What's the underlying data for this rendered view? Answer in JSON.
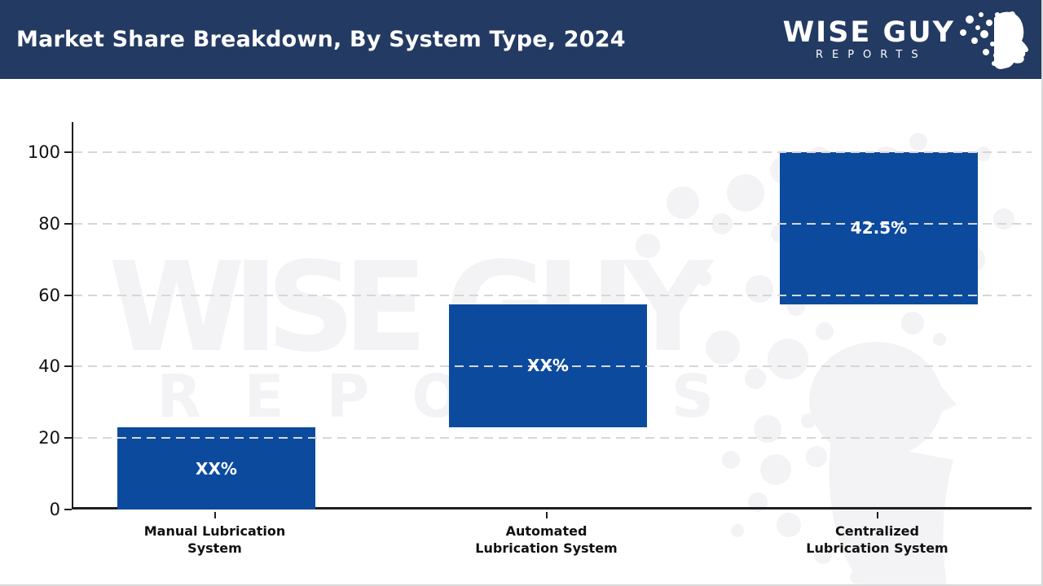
{
  "header": {
    "title": "Market Share Breakdown, By System Type, 2024",
    "logo": {
      "line1": "WISE GUY",
      "line2": "REPORTS"
    },
    "bg_color": "#233a63"
  },
  "watermark": {
    "line1": "WISE GUY",
    "line2": "REPORTS"
  },
  "chart_data": {
    "type": "bar",
    "subtype": "waterfall-floating-bars",
    "title": "Market Share Breakdown, By System Type, 2024",
    "categories": [
      {
        "line1": "Manual Lubrication",
        "line2": "System"
      },
      {
        "line1": "Automated",
        "line2": "Lubrication System"
      },
      {
        "line1": "Centralized",
        "line2": "Lubrication System"
      }
    ],
    "bars": [
      {
        "name": "Manual Lubrication System",
        "start": 0,
        "end": 23,
        "value": 23,
        "label": "XX%"
      },
      {
        "name": "Automated Lubrication System",
        "start": 23,
        "end": 57.5,
        "value": 34.5,
        "label": "XX%"
      },
      {
        "name": "Centralized Lubrication System",
        "start": 57.5,
        "end": 100,
        "value": 42.5,
        "label": "42.5%"
      }
    ],
    "yticks": [
      0,
      20,
      40,
      60,
      80,
      100
    ],
    "ylim": [
      0,
      108
    ],
    "xlabel": "",
    "ylabel": "",
    "bar_color": "#0c4a9e",
    "grid": "horizontal-dashed",
    "gridline_color": "#d7d7d7",
    "legend": "none"
  }
}
